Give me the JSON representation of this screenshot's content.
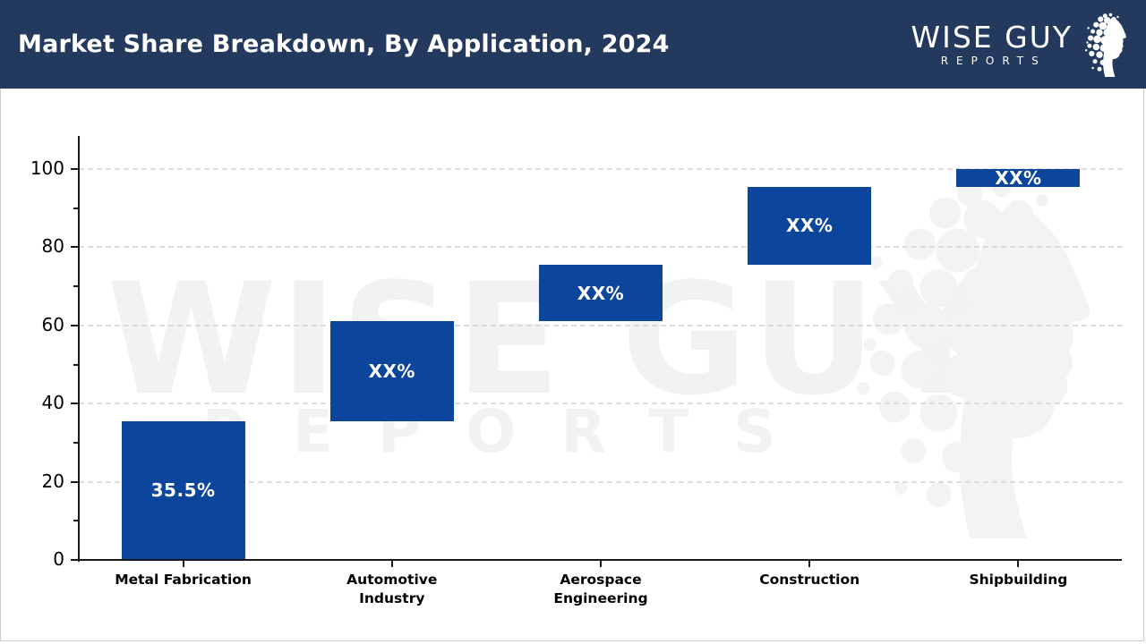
{
  "header": {
    "title": "Market Share Breakdown, By Application, 2024",
    "logo": {
      "line1": "WISE GUY",
      "line2": "REPORTS"
    }
  },
  "watermark": {
    "line1": "WISE GUY",
    "line2": "REPORTS"
  },
  "colors": {
    "header_bg": "#233a5e",
    "bar": "#0b459c",
    "bar_label": "#ffffff",
    "grid": "#dcdcdc",
    "axis": "#1a1a1a",
    "watermark": "#f2f2f3",
    "panel_border": "#cccccc"
  },
  "chart_data": {
    "type": "bar",
    "subtype": "floating-waterfall",
    "title": "Market Share Breakdown, By Application, 2024",
    "categories": [
      "Metal Fabrication",
      "Automotive\nIndustry",
      "Aerospace\nEngineering",
      "Construction",
      "Shipbuilding"
    ],
    "segments": [
      {
        "category": "Metal Fabrication",
        "start": 0,
        "end": 35.5,
        "label": "35.5%"
      },
      {
        "category": "Automotive Industry",
        "start": 35.5,
        "end": 61,
        "label": "XX%"
      },
      {
        "category": "Aerospace Engineering",
        "start": 61,
        "end": 75.5,
        "label": "XX%"
      },
      {
        "category": "Construction",
        "start": 75.5,
        "end": 95.5,
        "label": "XX%"
      },
      {
        "category": "Shipbuilding",
        "start": 95.5,
        "end": 100,
        "label": "XX%"
      }
    ],
    "ylim": [
      0,
      100
    ],
    "yticks": [
      0,
      20,
      40,
      60,
      80,
      100
    ],
    "yticks_minor": [
      10,
      30,
      50,
      70,
      90
    ],
    "xlabel": "",
    "ylabel": "",
    "grid": {
      "horizontal": true,
      "style": "dashed"
    },
    "legend": "none"
  }
}
